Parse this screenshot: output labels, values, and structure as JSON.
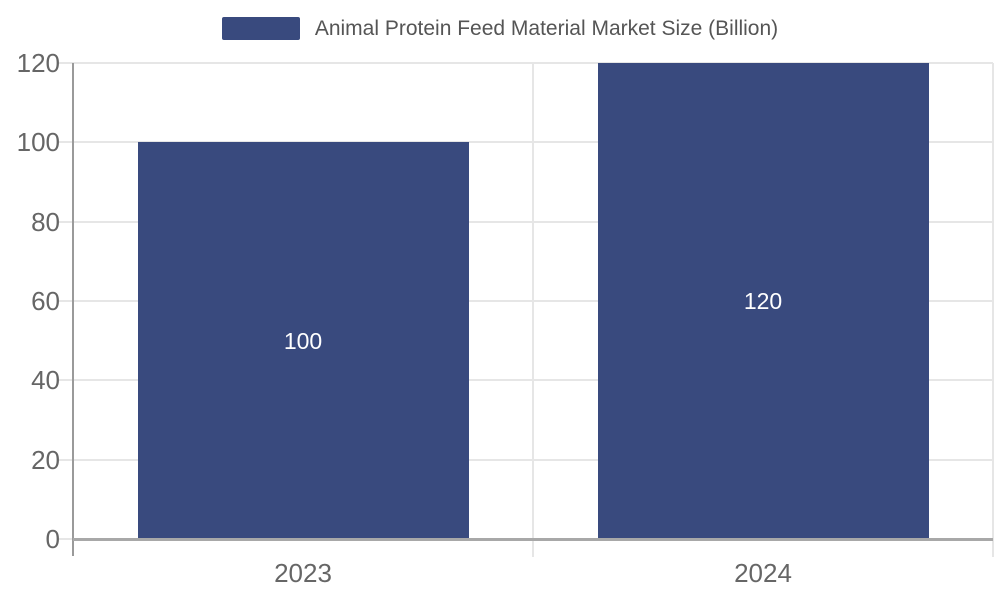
{
  "chart_data": {
    "type": "bar",
    "title": "Animal Protein Feed Material Market Size (Billion)",
    "categories": [
      "2023",
      "2024"
    ],
    "values": [
      100,
      120
    ],
    "xlabel": "",
    "ylabel": "",
    "ylim": [
      0,
      120
    ],
    "yticks": [
      0,
      20,
      40,
      60,
      80,
      100,
      120
    ],
    "grid": true,
    "legend_position": "top-center",
    "show_value_labels": true
  },
  "legend": {
    "label": "Animal Protein Feed Material Market Size (Billion)"
  },
  "colors": {
    "bar": "#394a7e",
    "value_label": "#ffffff",
    "axis_line": "#9a9a9a",
    "gridline": "#e6e6e6",
    "tick_text": "#666666",
    "legend_text": "#555555",
    "background": "#ffffff"
  }
}
